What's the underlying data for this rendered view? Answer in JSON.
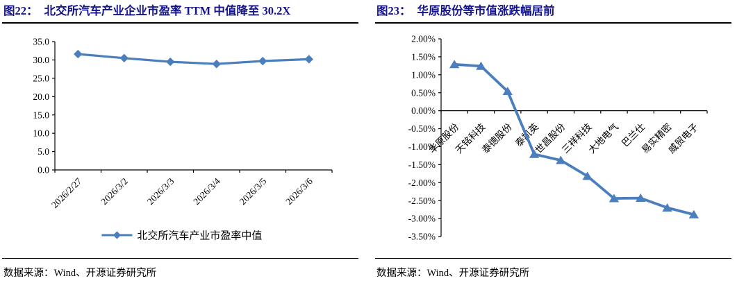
{
  "colors": {
    "title_navy": "#14148C",
    "line_blue": "#4A7EBD",
    "axis": "#000000",
    "rule": "#000000"
  },
  "figure22": {
    "label": "图22：",
    "title": "北交所汽车产业企业市盈率 TTM 中值降至 30.2X",
    "source": "数据来源：Wind、开源证券研究所"
  },
  "figure23": {
    "label": "图23：",
    "title": "华原股份等市值涨跌幅居前",
    "source": "数据来源：Wind、开源证券研究所"
  },
  "chart_data": [
    {
      "id": "pe-ttm-median",
      "type": "line",
      "title": "北交所汽车产业企业市盈率 TTM 中值降至 30.2X",
      "categories": [
        "2026/2/27",
        "2026/3/2",
        "2026/3/3",
        "2026/3/4",
        "2026/3/5",
        "2026/3/6"
      ],
      "series": [
        {
          "name": "北交所汽车产业市盈率中值",
          "values": [
            31.6,
            30.5,
            29.5,
            28.9,
            29.7,
            30.2
          ]
        }
      ],
      "marker": "diamond",
      "legend_position": "bottom",
      "grid": false,
      "xlabel": "",
      "ylabel": "",
      "ylim": [
        0,
        35
      ],
      "ytick_step": 5,
      "ytick_labels": [
        "35.0",
        "30.0",
        "25.0",
        "20.0",
        "15.0",
        "10.0",
        "5.0",
        "0.0"
      ]
    },
    {
      "id": "mktcap-change",
      "type": "line",
      "title": "华原股份等市值涨跌幅居前",
      "categories": [
        "华原股份",
        "天铭科技",
        "泰德股份",
        "泰凯英",
        "世昌股份",
        "三祥科技",
        "大地电气",
        "巴兰仕",
        "易实精密",
        "威贸电子"
      ],
      "series": [
        {
          "name": "市值涨跌幅",
          "values": [
            1.29,
            1.24,
            0.54,
            -1.21,
            -1.38,
            -1.82,
            -2.44,
            -2.43,
            -2.7,
            -2.89
          ]
        }
      ],
      "marker": "triangle",
      "legend_position": "none",
      "grid": false,
      "xlabel": "",
      "ylabel": "",
      "ylim": [
        -3.5,
        2.0
      ],
      "ytick_step": 0.5,
      "ytick_labels": [
        "2.00%",
        "1.50%",
        "1.00%",
        "0.50%",
        "0.00%",
        "-0.50%",
        "-1.00%",
        "-1.50%",
        "-2.00%",
        "-2.50%",
        "-3.00%",
        "-3.50%"
      ]
    }
  ]
}
